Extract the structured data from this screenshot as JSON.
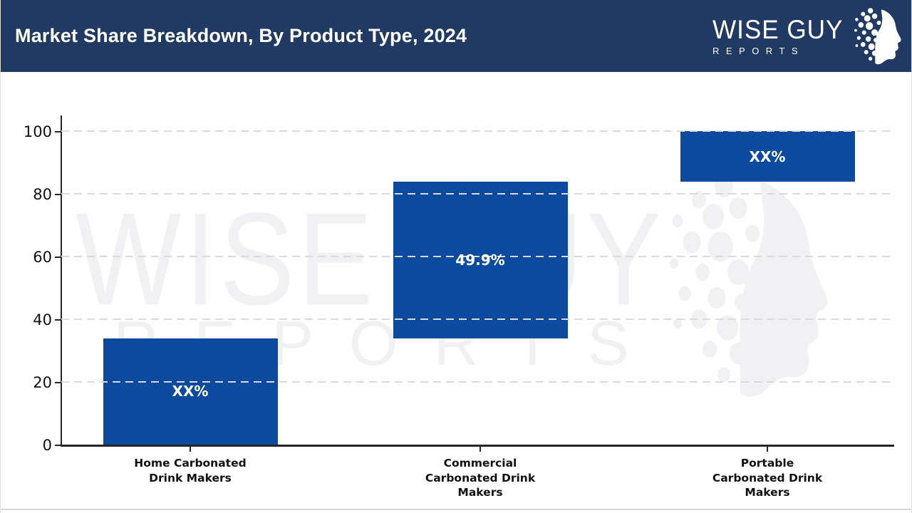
{
  "header": {
    "title": "Market Share Breakdown, By Product Type, 2024",
    "logo": {
      "wordmark": "WISE GUY",
      "subtext": "REPORTS"
    }
  },
  "watermark": {
    "wordmark": "WISE GUY",
    "subtext": "REPORTS"
  },
  "chart_data": {
    "type": "bar",
    "subtype": "stacked-waterfall",
    "title": "Market Share Breakdown, By Product Type, 2024",
    "categories": [
      "Home Carbonated\nDrink Makers",
      "Commercial\nCarbonated Drink\nMakers",
      "Portable\nCarbonated Drink\nMakers"
    ],
    "segments": [
      {
        "category": "Home Carbonated Drink Makers",
        "start": 0,
        "end": 33.9,
        "value": 33.9,
        "label": "XX%"
      },
      {
        "category": "Commercial Carbonated Drink Makers",
        "start": 33.9,
        "end": 83.8,
        "value": 49.9,
        "label": "49.9%"
      },
      {
        "category": "Portable Carbonated Drink Makers",
        "start": 83.8,
        "end": 99.9,
        "value": 16.1,
        "label": "XX%"
      }
    ],
    "xlabel": "",
    "ylabel": "",
    "ylim": [
      0,
      105
    ],
    "yticks": [
      0,
      20,
      40,
      60,
      80,
      100
    ],
    "grid": "horizontal-dashed",
    "legend": "none",
    "colors": {
      "bar": "#0C4AA0",
      "value_label": "#FFFFFF",
      "axis": "#262626",
      "tick_label": "#111111",
      "gridline": "#DADADA",
      "header_bg": "#213A64",
      "watermark": "#F1F1F4"
    }
  }
}
